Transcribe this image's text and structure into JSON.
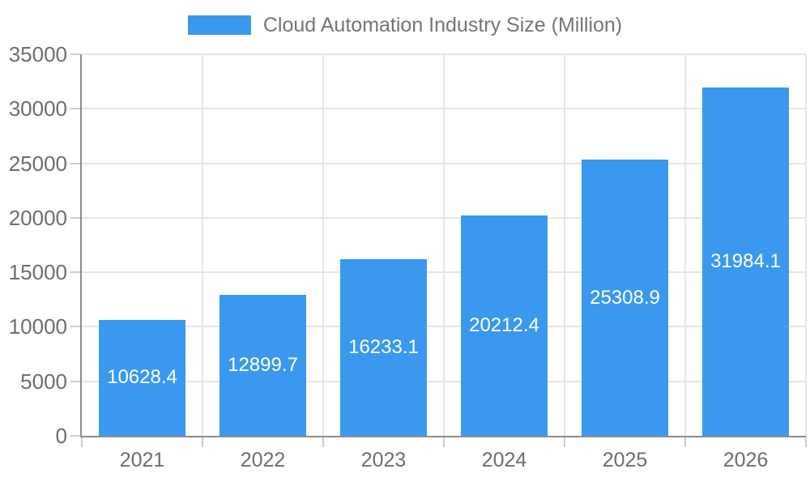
{
  "legend": {
    "label": "Cloud Automation Industry Size (Million)"
  },
  "chart_data": {
    "type": "bar",
    "title": "Cloud Automation Industry Size (Million)",
    "series_name": "Cloud Automation Industry Size (Million)",
    "categories": [
      "2021",
      "2022",
      "2023",
      "2024",
      "2025",
      "2026"
    ],
    "values": [
      10628.4,
      12899.7,
      16233.1,
      20212.4,
      25308.9,
      31984.1
    ],
    "value_labels": [
      "10628.4",
      "12899.7",
      "16233.1",
      "20212.4",
      "25308.9",
      "31984.1"
    ],
    "xlabel": "",
    "ylabel": "",
    "ylim": [
      0,
      35000
    ],
    "y_tick_step": 5000,
    "y_tick_labels": [
      "0",
      "5000",
      "10000",
      "15000",
      "20000",
      "25000",
      "30000",
      "35000"
    ],
    "grid": true,
    "legend_position": "top"
  },
  "colors": {
    "bar": "#3A99EE",
    "grid": "#E6E6E6",
    "axis": "#8C8C8C",
    "tick": "#CCCCCC",
    "axis_label": "#6E6E6E",
    "legend_text": "#757575",
    "bar_value_label": "#FFFFFF",
    "background": "#FFFFFF"
  }
}
